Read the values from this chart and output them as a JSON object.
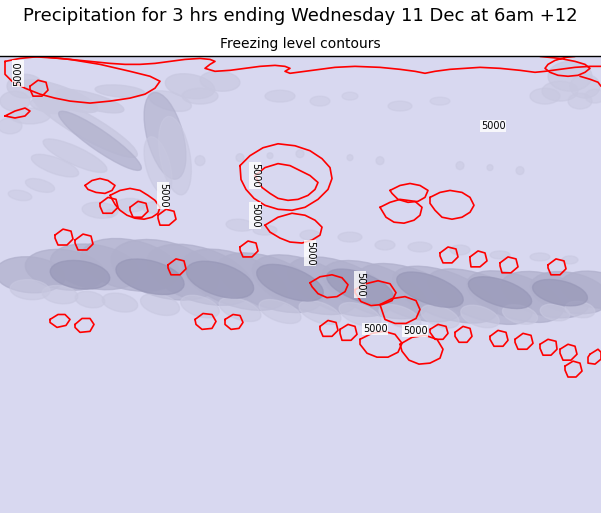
{
  "title": "Precipitation for 3 hrs ending Wednesday 11 Dec at 6am +12",
  "subtitle": "Freezing level contours",
  "title_fontsize": 13,
  "subtitle_fontsize": 10,
  "map_bg_color": "#d8d8f0",
  "contour_color": "#ff0000",
  "contour_label_fontsize": 7,
  "figsize": [
    6.01,
    5.13
  ],
  "dpi": 100
}
